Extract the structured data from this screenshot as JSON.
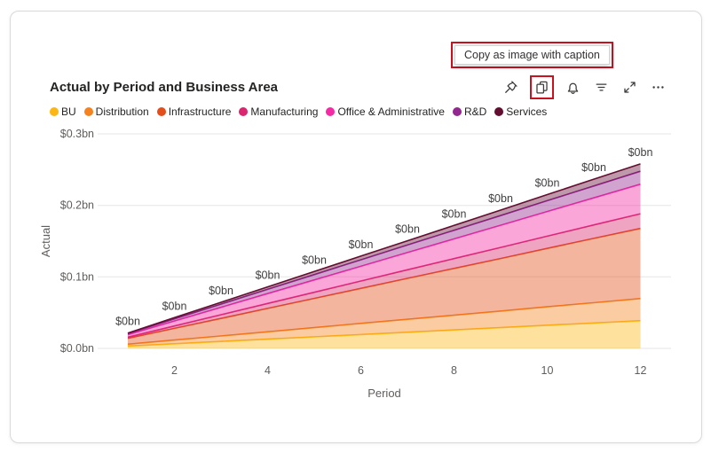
{
  "tooltip": {
    "text": "Copy as image with caption"
  },
  "header": {
    "title": "Actual by Period and Business Area"
  },
  "toolbar": {
    "icons": [
      "pin",
      "copy",
      "alert",
      "filter",
      "focus-mode",
      "more-options"
    ]
  },
  "colors": {
    "highlight_red": "#C8121F",
    "axis_text": "#605E5C",
    "title_text": "#252423"
  },
  "chart_data": {
    "type": "area",
    "stacked": true,
    "title": "Actual by Period and Business Area",
    "xlabel": "Period",
    "ylabel": "Actual",
    "x": [
      1,
      2,
      3,
      4,
      5,
      6,
      7,
      8,
      9,
      10,
      11,
      12
    ],
    "x_tick_labels": [
      2,
      4,
      6,
      8,
      10,
      12
    ],
    "y_tick_values": [
      0,
      0.1,
      0.2,
      0.3
    ],
    "y_tick_labels": [
      "$0.0bn",
      "$0.1bn",
      "$0.2bn",
      "$0.3bn"
    ],
    "ylim": [
      0,
      0.3
    ],
    "grid": true,
    "legend_position": "top",
    "data_labels": {
      "visible": true,
      "text": "$0bn"
    },
    "series": [
      {
        "name": "BU",
        "color": "#FCB714",
        "values": [
          0.0032,
          0.0065,
          0.0097,
          0.0129,
          0.0161,
          0.0194,
          0.0226,
          0.0258,
          0.029,
          0.0323,
          0.0355,
          0.0387
        ]
      },
      {
        "name": "Distribution",
        "color": "#F5821E",
        "values": [
          0.0026,
          0.0052,
          0.0077,
          0.0103,
          0.0129,
          0.0155,
          0.0181,
          0.0206,
          0.0232,
          0.0258,
          0.0284,
          0.031
        ]
      },
      {
        "name": "Infrastructure",
        "color": "#E44E1B",
        "values": [
          0.0082,
          0.0163,
          0.0245,
          0.0327,
          0.0409,
          0.049,
          0.0572,
          0.0654,
          0.0735,
          0.0817,
          0.0899,
          0.098
        ]
      },
      {
        "name": "Manufacturing",
        "color": "#D9266E",
        "values": [
          0.0017,
          0.0034,
          0.0052,
          0.0069,
          0.0086,
          0.0103,
          0.012,
          0.0138,
          0.0155,
          0.0172,
          0.0189,
          0.0206
        ]
      },
      {
        "name": "Office & Administrative",
        "color": "#F52BA5",
        "values": [
          0.0034,
          0.0069,
          0.0103,
          0.0138,
          0.0172,
          0.0206,
          0.0241,
          0.0275,
          0.031,
          0.0344,
          0.0378,
          0.0413
        ]
      },
      {
        "name": "R&D",
        "color": "#92278F",
        "values": [
          0.0015,
          0.003,
          0.0045,
          0.006,
          0.0075,
          0.009,
          0.0105,
          0.012,
          0.0135,
          0.0151,
          0.0166,
          0.0181
        ]
      },
      {
        "name": "Services",
        "color": "#630D31",
        "values": [
          0.0009,
          0.0017,
          0.0026,
          0.0034,
          0.0043,
          0.0052,
          0.006,
          0.0069,
          0.0077,
          0.0086,
          0.0095,
          0.0103
        ]
      }
    ]
  }
}
